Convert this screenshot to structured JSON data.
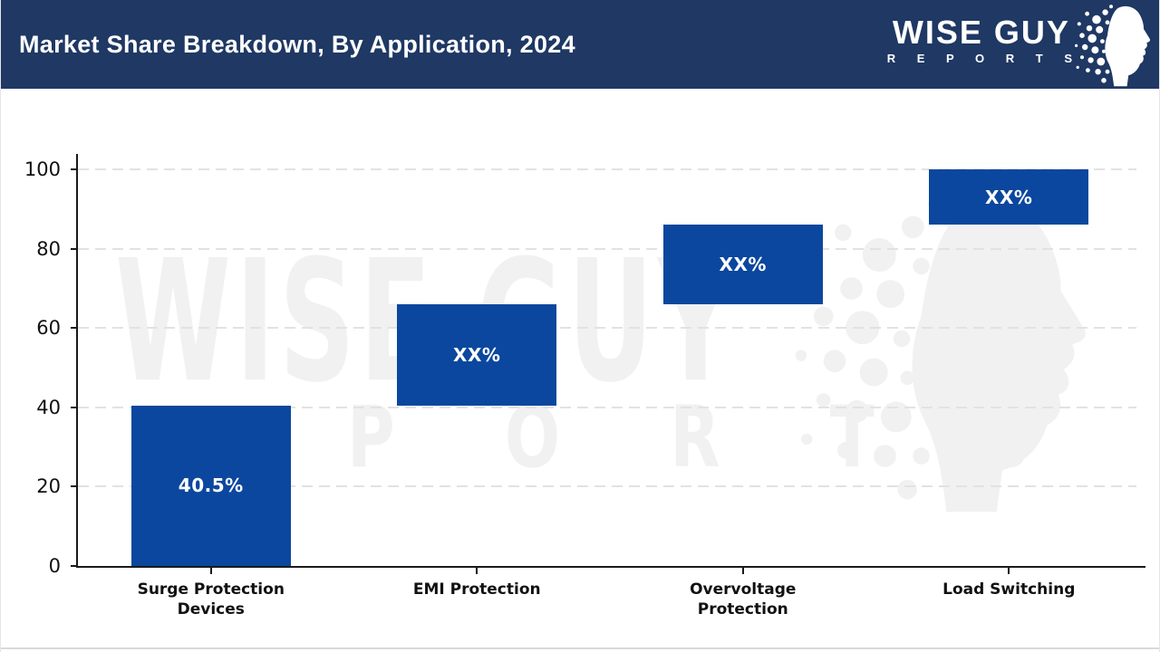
{
  "header": {
    "title": "Market Share Breakdown, By Application, 2024",
    "logo": {
      "wordmark": "WISE GUY",
      "subtitle": "R E P O R T S",
      "face_icon": "dotted-head-profile"
    }
  },
  "watermark": {
    "line1": "WISE GUY",
    "line2": "P O R T S",
    "face_icon": "dotted-head-profile"
  },
  "chart_data": {
    "type": "bar",
    "subtype": "floating-waterfall",
    "title": "Market Share Breakdown, By Application, 2024",
    "categories": [
      "Surge Protection Devices",
      "EMI Protection",
      "Overvoltage Protection",
      "Load Switching"
    ],
    "series": [
      {
        "name": "Market Share (%)",
        "segments": [
          {
            "category": "Surge Protection Devices",
            "start": 0,
            "end": 40.5,
            "label": "40.5%"
          },
          {
            "category": "EMI Protection",
            "start": 40.5,
            "end": 66,
            "label": "XX%"
          },
          {
            "category": "Overvoltage Protection",
            "start": 66,
            "end": 86,
            "label": "XX%"
          },
          {
            "category": "Load Switching",
            "start": 86,
            "end": 100,
            "label": "XX%"
          }
        ]
      }
    ],
    "xlabel": "",
    "ylabel": "",
    "ylim": [
      0,
      100
    ],
    "yticks": [
      0,
      20,
      40,
      60,
      80,
      100
    ],
    "grid": "horizontal-dashed",
    "legend": "none"
  },
  "colors": {
    "header_bg": "#1f3864",
    "title_text": "#ffffff",
    "page_bg": "#ffffff",
    "bar_fill": "#0b479e",
    "bar_label": "#ffffff",
    "grid_line": "#e2e2e2",
    "axis_line": "#1a1a1a",
    "tick_label": "#111111",
    "watermark": "#f1f1f2",
    "border": "#d9d9d9"
  }
}
